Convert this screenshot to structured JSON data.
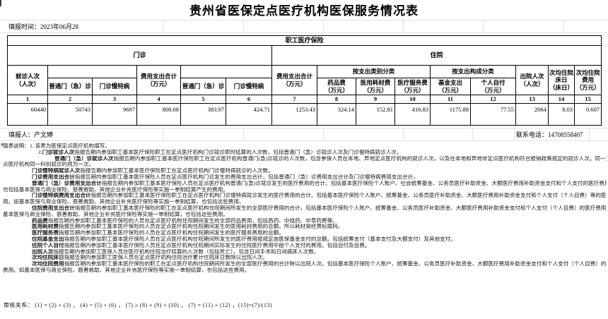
{
  "title": "贵州省医保定点医疗机构医保服务情况表",
  "report_time": "填报时间：2023年06月28",
  "filler": "填报人：产文婷",
  "contact": "联系电话：14708558407",
  "table": {
    "insurance_header": "职工医疗保险",
    "outpatient_header": "门诊",
    "inpatient_header": "住院",
    "expense_category_header": "按支出类别分类",
    "expense_composition_header": "按支出构成分类",
    "col_visits": "就诊人次\n（人次）",
    "col_general_outpatient_visits": "普通门（急）诊",
    "col_chronic_visits": "门诊慢特病",
    "col_outpatient_total_expense": "费用支出合计\n（万元）",
    "col_general_outpatient_expense": "普通门（急）诊",
    "col_chronic_expense": "门诊慢特病",
    "col_inpatient_total_expense": "费用支出合计\n（万元）",
    "col_drug_fee": "药品费\n（万元）",
    "col_consumables_fee": "医用耗材费\n（万元）",
    "col_service_fee": "医疗服务费\n（万元）",
    "col_fund_expense": "基金支出\n（万元）",
    "col_self_pay": "个人自付\n（万元）",
    "col_discharges": "出院人次\n（人次）",
    "col_avg_bed_days": "次均住院\n床日\n（床日）",
    "col_avg_expense": "次均住院\n费用\n（万元）",
    "column_numbers": [
      "1",
      "2",
      "3",
      "4",
      "5",
      "6",
      "7",
      "8",
      "9",
      "10",
      "11",
      "12",
      "13",
      "14",
      "15"
    ],
    "values": [
      "60440",
      "50743",
      "9697",
      "808.68",
      "383.97",
      "424.71",
      "1253.43",
      "324.14",
      "152.81",
      "416.83",
      "1175.88",
      "77.55",
      "2064",
      "8.03",
      "0.607"
    ]
  },
  "notes": {
    "lines": [
      {
        "indent": 2,
        "parts": [
          {
            "b": false,
            "t": "填表说明：1. 该表为医保定点医疗机构填写。"
          }
        ]
      },
      {
        "indent": 52,
        "parts": [
          {
            "b": false,
            "t": "2."
          },
          {
            "b": true,
            "t": "门诊就诊人次"
          },
          {
            "b": false,
            "t": "指报告期内参加职工基本医疗保险职工在定点医疗机构门诊就诊即时结算的人次数，包括普通门（急）诊就诊人次及门诊慢特病就诊人次。"
          }
        ]
      },
      {
        "indent": 75,
        "parts": [
          {
            "b": true,
            "t": "普通门（急）诊就诊人次"
          },
          {
            "b": false,
            "t": "指报告期内参加职工基本医疗保险职工在定点医疗机构普通门(急)诊就诊的人次数，包含参保人员在本地、异地定点医疗机构的就诊人次，以及在本地和异地非定点医疗机构符合报销政策规定的就诊人次。同一天在同一家定"
          }
        ]
      },
      {
        "indent": 2,
        "parts": [
          {
            "b": false,
            "t": "点医疗机构同一科别就诊的视为一次。"
          }
        ]
      },
      {
        "indent": 43,
        "parts": [
          {
            "b": true,
            "t": "门诊慢特病就诊人次"
          },
          {
            "b": false,
            "t": "指报告期内参加职工基本医疗保险职工在定点医疗机构门诊慢特病就诊的人次数。"
          }
        ]
      },
      {
        "indent": 43,
        "parts": [
          {
            "b": true,
            "t": "门诊费用支出合计"
          },
          {
            "b": false,
            "t": "指报告期内参加职工基本医疗保险人员在定点医疗机构门诊发生的费用支出合计，包括普通门（急）诊费用支出合计及门诊慢特病费用支出合计。"
          }
        ]
      },
      {
        "indent": 43,
        "parts": [
          {
            "b": true,
            "t": "普通门（急）诊费用支出合计"
          },
          {
            "b": false,
            "t": "指报告期内参加职工基本医疗保险人员在定点医疗机构普通门(急)诊就诊发生的医疗费用的合计。包括基本医疗保险个人账户、社会统筹基金、公务员医疗补助资金、大额医疗费用补助资金支付和个人支付的医疗费用。"
          }
        ]
      },
      {
        "indent": 2,
        "parts": [
          {
            "b": false,
            "t": "也包括基本医保与商业保险、慈善救助、其他企业补充医疗保险等实施一单制结算产生的费用。"
          }
        ]
      },
      {
        "indent": 43,
        "parts": [
          {
            "b": true,
            "t": "门诊慢特病费用支出合计"
          },
          {
            "b": false,
            "t": "指报告期内参加职工基本医疗保险职工在定点医疗机构门诊慢特病就诊发生的医疗费用的合计。包括基本医疗保险个人账户、统筹基金、公务员医疗补助资金、大额医疗费用补助资金支付和个人支付（个人自费）等的医疗费"
          }
        ]
      },
      {
        "indent": 2,
        "parts": [
          {
            "b": false,
            "t": "用。如基本医保与商业保险、慈善救助、其他企业补充医疗保险等实施一单制结算，也包括这些费用。"
          }
        ]
      },
      {
        "indent": 43,
        "parts": [
          {
            "b": true,
            "t": "住院费用支出合计"
          },
          {
            "b": false,
            "t": "指报告期内参加职工基本医疗保险的职工在定点医疗机构住院期间所发生的全部医疗费用的合计，包括基本医疗保险个人账户、统筹基金、公务员医疗补助资金、大额医疗费用补助资金支付和个人支付（个人自费）的医疗费用。如"
          }
        ]
      },
      {
        "indent": 2,
        "parts": [
          {
            "b": false,
            "t": "基本医保与商业保险、慈善救助、其他企业补充医疗保险等实施一单制结算，也包括这些费用。"
          }
        ]
      },
      {
        "indent": 43,
        "parts": [
          {
            "b": true,
            "t": "药品费"
          },
          {
            "b": false,
            "t": "指报告期内参加职工基本医疗保险的人员在定点医疗机构住院期间发生的全部药品费用，包括西药、中成药、中草药费等。"
          }
        ]
      },
      {
        "indent": 43,
        "parts": [
          {
            "b": true,
            "t": "医用耗材费"
          },
          {
            "b": false,
            "t": "指报告期内参加职工基本医疗保险的人员在定点医疗机构住院期间发生的医用耗材费用的总额。所以耗材需经贯标赋码。"
          }
        ]
      },
      {
        "indent": 43,
        "parts": [
          {
            "b": true,
            "t": "医疗服务费"
          },
          {
            "b": false,
            "t": "指报告期内参加职工基本医疗保险的人员在定点医疗机构住院期间发生的医疗服务费用的总额。"
          }
        ]
      },
      {
        "indent": 43,
        "parts": [
          {
            "b": true,
            "t": "住院基金支出"
          },
          {
            "b": false,
            "t": "指报告期内参加职工基本医疗保险人员在定点医疗机构住院期间所发生的医疗费用按规定由医保基金支付的总额。包括统筹支付（基本支付及大额支付）及其他支付。"
          }
        ]
      },
      {
        "indent": 43,
        "parts": [
          {
            "b": true,
            "t": "住院个人自付"
          },
          {
            "b": false,
            "t": "指报告期内参加职工基本医疗保险人员在定点医疗机构住院期间实际发生的住院医疗费用中由个人支付的费用。包括自付及自费。"
          }
        ]
      },
      {
        "indent": 43,
        "parts": [
          {
            "b": true,
            "t": "出院人次"
          },
          {
            "b": false,
            "t": "指报告期内参加职工医保人员在医疗机构住院治疗结算的人次数（包括死亡），包含日间手术和日间病床人次数。"
          }
        ]
      },
      {
        "indent": 43,
        "parts": [
          {
            "b": true,
            "t": "次均住院床日"
          },
          {
            "b": false,
            "t": "指报告期内参加职工医保人员在定点医疗机构住院治疗累计住院床日数除以出院人次。"
          }
        ]
      },
      {
        "indent": 43,
        "parts": [
          {
            "b": true,
            "t": "次均住院费用"
          },
          {
            "b": false,
            "t": "指报告期内参加职工基本医疗保险的职工在定点医疗机构住院期间所发生的全部医疗费用的合计除以出院人次。包括基本医疗保险个人账户、统筹基金、公务员医疗补助资金、大额医疗费用补助资金支付和个人支付（个人自费）的医疗"
          }
        ]
      },
      {
        "indent": 2,
        "parts": [
          {
            "b": false,
            "t": "费用。如基本医保与商业保险、慈善救助、其他企业补充医疗保险等实施一单制结算，也包括这些费用。"
          }
        ]
      }
    ]
  },
  "audit": "审核关系：  (1) = (2) + (3) ，  (4) = (5) + (6) ，  (7) ≥ (8) + (9) + (10) ，  (7) = (11) + (12) ，(15)=(7)/(13)",
  "colors": {
    "grid_light": "#dbe0ea",
    "table_border": "#000000",
    "error_indicator": "#33a02c"
  }
}
